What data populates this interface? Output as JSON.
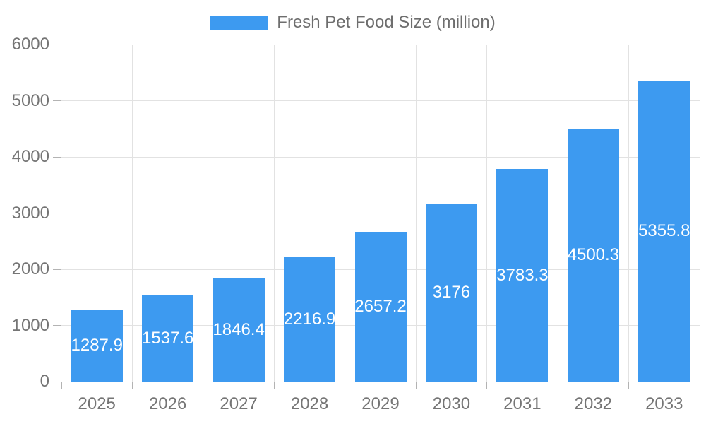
{
  "chart_data": {
    "type": "bar",
    "title": "Fresh Pet Food Size (million)",
    "legend": [
      "Fresh Pet Food Size (million)"
    ],
    "legend_position": "top",
    "categories": [
      "2025",
      "2026",
      "2027",
      "2028",
      "2029",
      "2030",
      "2031",
      "2032",
      "2033"
    ],
    "series": [
      {
        "name": "Fresh Pet Food Size (million)",
        "values": [
          1287.9,
          1537.6,
          1846.4,
          2216.9,
          2657.2,
          3176,
          3783.3,
          4500.3,
          5355.8
        ]
      }
    ],
    "value_labels": [
      "1287.9",
      "1537.6",
      "1846.4",
      "2216.9",
      "2657.2",
      "3176",
      "3783.3",
      "4500.3",
      "5355.8"
    ],
    "xlabel": "",
    "ylabel": "",
    "ylim": [
      0,
      6000
    ],
    "y_ticks": [
      0,
      1000,
      2000,
      3000,
      4000,
      5000,
      6000
    ],
    "y_tick_labels": [
      "0",
      "1000",
      "2000",
      "3000",
      "4000",
      "5000",
      "6000"
    ],
    "grid": true,
    "colors": {
      "bar": "#3D9AF0",
      "gridline": "#E2E2E2",
      "axis_line": "#B3B3B3",
      "axis_text": "#757575",
      "legend_text": "#6E6E6E",
      "value_text": "#FFFFFF",
      "background": "#FFFFFF"
    }
  }
}
